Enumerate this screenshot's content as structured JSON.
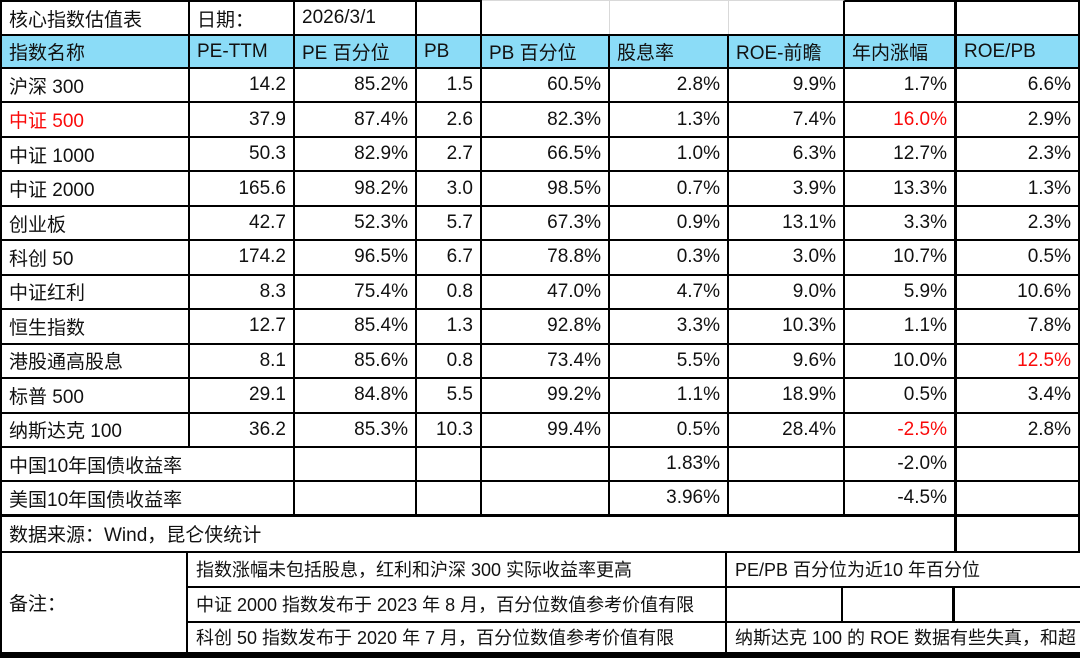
{
  "colors": {
    "header_bg": "#8bdcf7",
    "red_text": "#fa0a0a",
    "border_black": "#000000",
    "gridline_gray": "#d9d9d9"
  },
  "title_row": {
    "title": "核心指数估值表",
    "date_label": "日期：",
    "date_value": "2026/3/1"
  },
  "columns": [
    "指数名称",
    "PE-TTM",
    "PE 百分位",
    "PB",
    "PB 百分位",
    "股息率",
    "ROE-前瞻",
    "年内涨幅",
    "ROE/PB"
  ],
  "index_rows": [
    {
      "cells": [
        "沪深 300",
        "14.2",
        "85.2%",
        "1.5",
        "60.5%",
        "2.8%",
        "9.9%",
        "1.7%",
        "6.6%"
      ],
      "red": []
    },
    {
      "cells": [
        "中证 500",
        "37.9",
        "87.4%",
        "2.6",
        "82.3%",
        "1.3%",
        "7.4%",
        "16.0%",
        "2.9%"
      ],
      "red": [
        0,
        7
      ]
    },
    {
      "cells": [
        "中证 1000",
        "50.3",
        "82.9%",
        "2.7",
        "66.5%",
        "1.0%",
        "6.3%",
        "12.7%",
        "2.3%"
      ],
      "red": []
    },
    {
      "cells": [
        "中证 2000",
        "165.6",
        "98.2%",
        "3.0",
        "98.5%",
        "0.7%",
        "3.9%",
        "13.3%",
        "1.3%"
      ],
      "red": []
    },
    {
      "cells": [
        "创业板",
        "42.7",
        "52.3%",
        "5.7",
        "67.3%",
        "0.9%",
        "13.1%",
        "3.3%",
        "2.3%"
      ],
      "red": []
    },
    {
      "cells": [
        "科创 50",
        "174.2",
        "96.5%",
        "6.7",
        "78.8%",
        "0.3%",
        "3.0%",
        "10.7%",
        "0.5%"
      ],
      "red": []
    },
    {
      "cells": [
        "中证红利",
        "8.3",
        "75.4%",
        "0.8",
        "47.0%",
        "4.7%",
        "9.0%",
        "5.9%",
        "10.6%"
      ],
      "red": []
    },
    {
      "cells": [
        "恒生指数",
        "12.7",
        "85.4%",
        "1.3",
        "92.8%",
        "3.3%",
        "10.3%",
        "1.1%",
        "7.8%"
      ],
      "red": []
    },
    {
      "cells": [
        "港股通高股息",
        "8.1",
        "85.6%",
        "0.8",
        "73.4%",
        "5.5%",
        "9.6%",
        "10.0%",
        "12.5%"
      ],
      "red": [
        8
      ]
    },
    {
      "cells": [
        "标普 500",
        "29.1",
        "84.8%",
        "5.5",
        "99.2%",
        "1.1%",
        "18.9%",
        "0.5%",
        "3.4%"
      ],
      "red": []
    },
    {
      "cells": [
        "纳斯达克 100",
        "36.2",
        "85.3%",
        "10.3",
        "99.4%",
        "0.5%",
        "28.4%",
        "-2.5%",
        "2.8%"
      ],
      "red": [
        7
      ]
    }
  ],
  "bond_rows": [
    {
      "name": "中国10年国债收益率",
      "dividend_yield": "1.83%",
      "ytd_change": "-2.0%"
    },
    {
      "name": "美国10年国债收益率",
      "dividend_yield": "3.96%",
      "ytd_change": "-4.5%"
    }
  ],
  "source_row": "数据来源：Wind，昆仑侠统计",
  "notes": {
    "label": "备注：",
    "rows": [
      {
        "left": "指数涨幅未包括股息，红利和沪深 300 实际收益率更高",
        "right": "PE/PB 百分位为近10 年百分位"
      },
      {
        "left": "中证 2000 指数发布于 2023 年 8 月，百分位数值参考价值有限",
        "right": ""
      },
      {
        "left": "科创 50 指数发布于 2020 年 7 月，百分位数值参考价值有限",
        "right": "纳斯达克 100 的 ROE 数据有些失真，和超"
      }
    ]
  }
}
